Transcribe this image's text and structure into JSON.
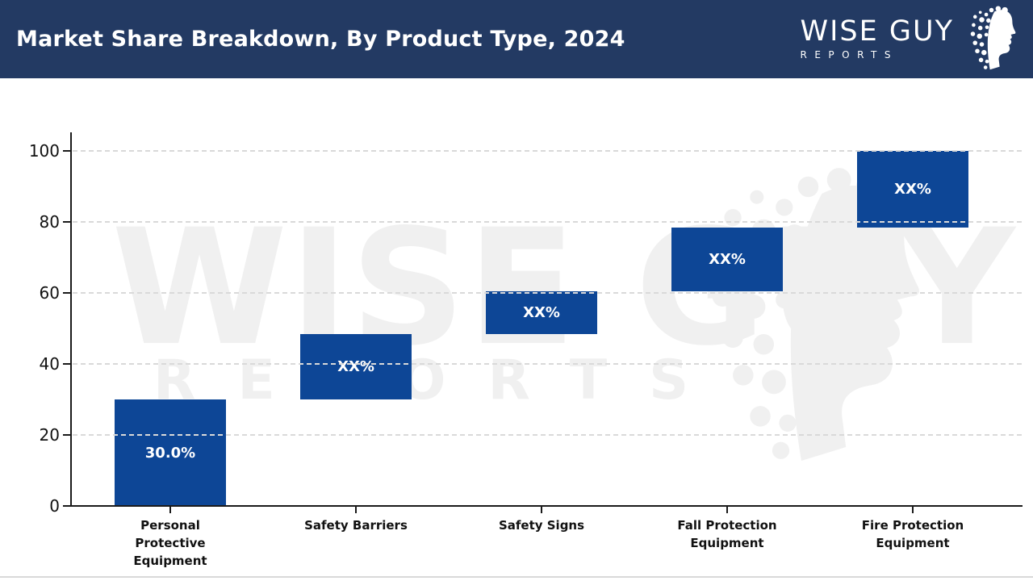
{
  "header": {
    "title": "Market Share Breakdown, By Product Type, 2024",
    "logo": {
      "line1": "WISE GUY",
      "line2": "REPORTS"
    }
  },
  "watermark": {
    "line1": "WISE GUY",
    "line2": "REPORTS"
  },
  "colors": {
    "header_bg": "#233a63",
    "bar": "#0d4696",
    "bar_label": "#ffffff",
    "grid": "#d9d9d9",
    "axis": "#1a1a1a",
    "watermark": "#f0f0f0",
    "title_text": "#ffffff"
  },
  "chart_data": {
    "type": "bar",
    "variant": "waterfall",
    "title": "Market Share Breakdown, By Product Type, 2024",
    "xlabel": "",
    "ylabel": "",
    "ylim": [
      0,
      105
    ],
    "yticks": [
      0,
      20,
      40,
      60,
      80,
      100
    ],
    "grid": "horizontal-dashed",
    "legend": "none",
    "categories": [
      "Personal Protective Equipment",
      "Safety Barriers",
      "Safety Signs",
      "Fall Protection Equipment",
      "Fire Protection Equipment"
    ],
    "category_lines": [
      [
        "Personal",
        "Protective",
        "Equipment"
      ],
      [
        "Safety Barriers"
      ],
      [
        "Safety Signs"
      ],
      [
        "Fall Protection",
        "Equipment"
      ],
      [
        "Fire Protection",
        "Equipment"
      ]
    ],
    "bars": [
      {
        "category": "Personal Protective Equipment",
        "start": 0,
        "end": 30,
        "label": "30.0%"
      },
      {
        "category": "Safety Barriers",
        "start": 30,
        "end": 48.5,
        "label": "XX%"
      },
      {
        "category": "Safety Signs",
        "start": 48.5,
        "end": 60.5,
        "label": "XX%"
      },
      {
        "category": "Fall Protection Equipment",
        "start": 60.5,
        "end": 78.5,
        "label": "XX%"
      },
      {
        "category": "Fire Protection Equipment",
        "start": 78.5,
        "end": 100,
        "label": "XX%"
      }
    ]
  }
}
